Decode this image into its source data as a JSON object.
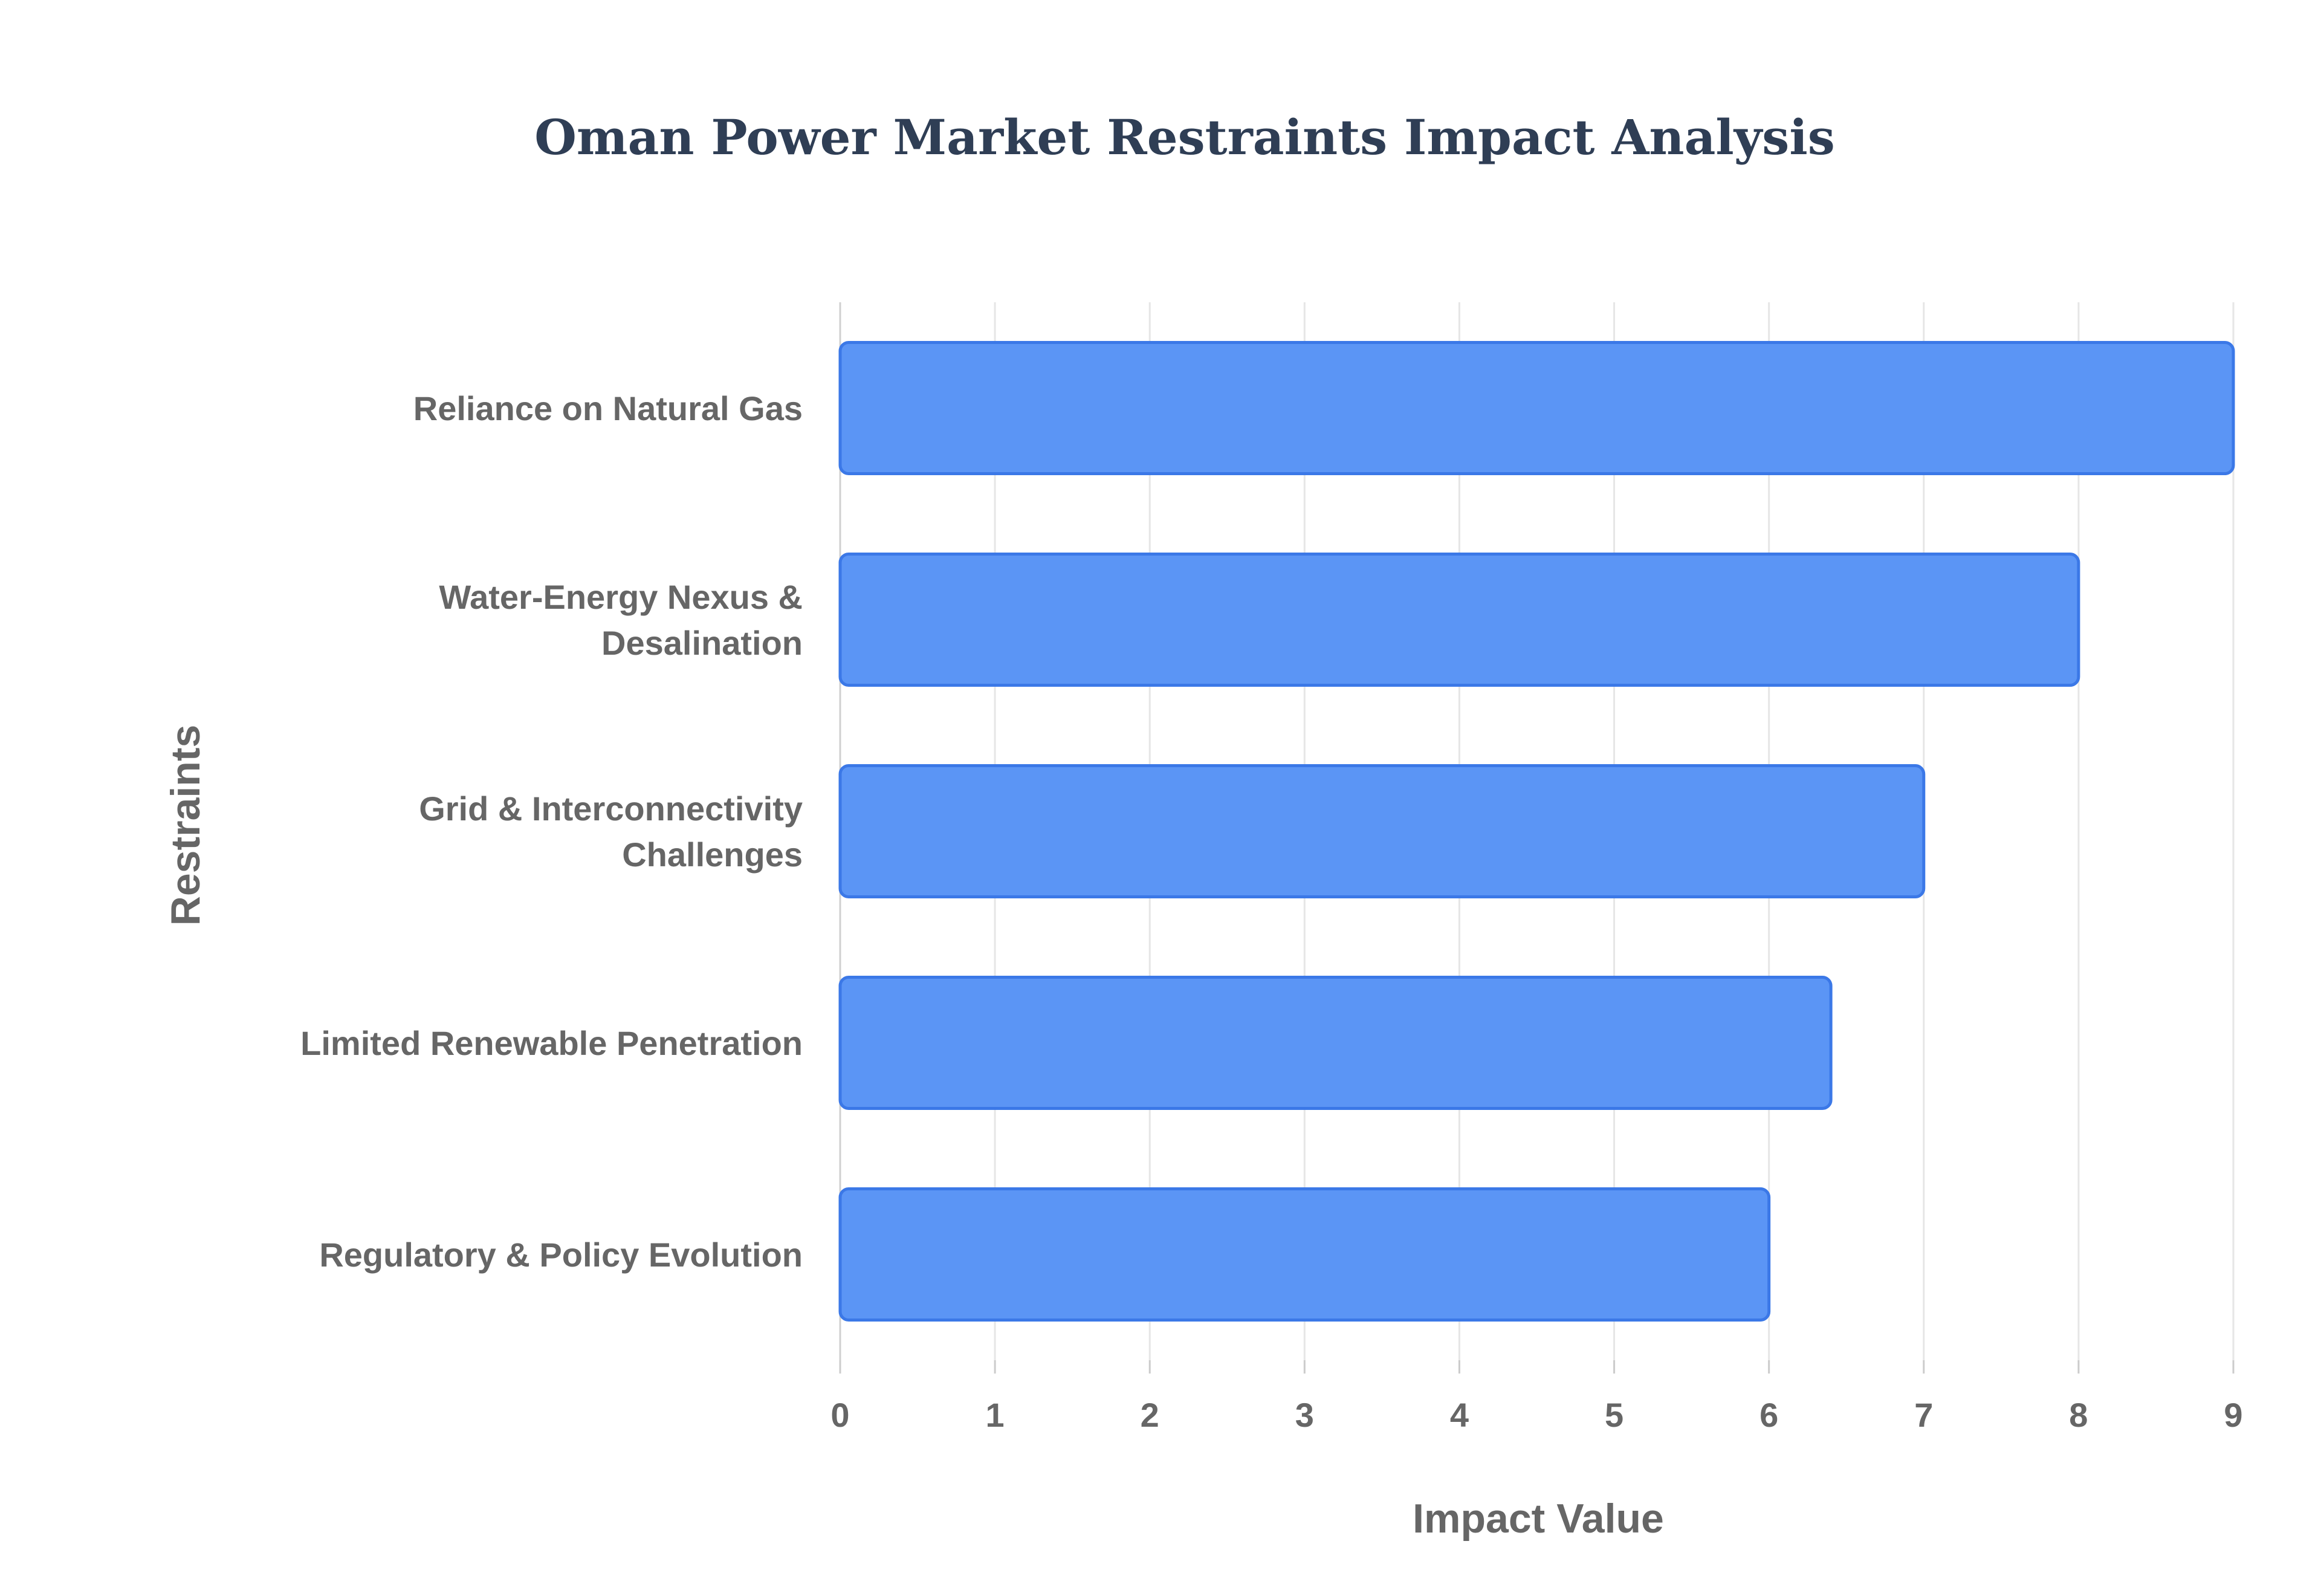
{
  "colors": {
    "bar_fill": "#5b95f5",
    "bar_stroke": "#3b78e7",
    "title": "#2f3e55",
    "text": "#666666"
  },
  "chart_data": {
    "type": "bar",
    "orientation": "horizontal",
    "title": "Oman Power Market Restraints Impact Analysis",
    "xlabel": "Impact Value",
    "ylabel": "Restraints",
    "categories": [
      [
        "Reliance on Natural Gas"
      ],
      [
        "Water-Energy Nexus &",
        "Desalination"
      ],
      [
        "Grid & Interconnectivity",
        "Challenges"
      ],
      [
        "Limited Renewable Penetration"
      ],
      [
        "Regulatory & Policy Evolution"
      ]
    ],
    "values": [
      9,
      8,
      7,
      6.4,
      6
    ],
    "xlim": [
      0,
      9
    ],
    "xticks": [
      "0",
      "1",
      "2",
      "3",
      "4",
      "5",
      "6",
      "7",
      "8",
      "9"
    ],
    "grid": true,
    "legend": "none"
  }
}
